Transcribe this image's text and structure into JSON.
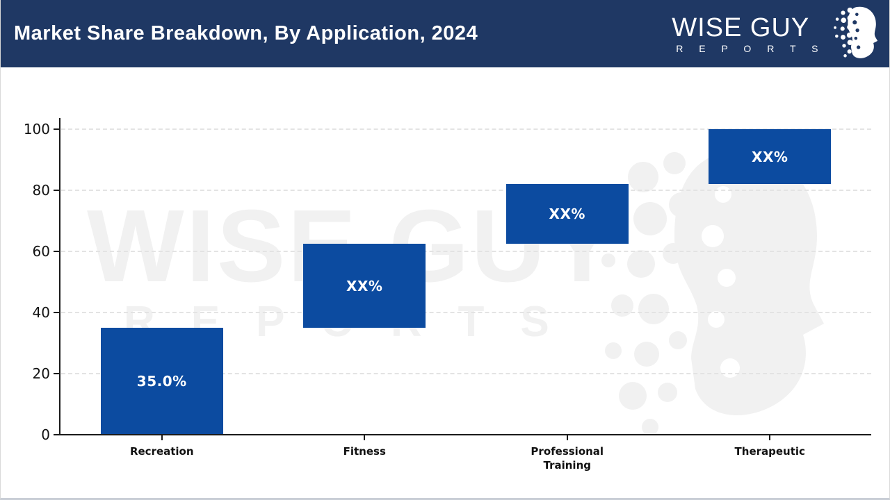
{
  "header": {
    "title": "Market Share Breakdown, By Application, 2024",
    "bg_color": "#1f3864",
    "logo": {
      "line1": "WISE GUY",
      "line2": "R E P O R T S"
    }
  },
  "watermark": {
    "line1": "WISE GUY",
    "line2": "REPORTS"
  },
  "chart_data": {
    "type": "bar",
    "variant": "waterfall",
    "title": "Market Share Breakdown, By Application, 2024",
    "categories": [
      "Recreation",
      "Fitness",
      "Professional Training",
      "Therapeutic"
    ],
    "segments": [
      {
        "category": "Recreation",
        "start": 0,
        "end": 35,
        "label": "35.0%"
      },
      {
        "category": "Fitness",
        "start": 35,
        "end": 62.5,
        "label": "XX%"
      },
      {
        "category": "Professional Training",
        "start": 62.5,
        "end": 82,
        "label": "XX%"
      },
      {
        "category": "Therapeutic",
        "start": 82,
        "end": 100,
        "label": "XX%"
      }
    ],
    "xlabel": "",
    "ylabel": "",
    "ylim": [
      0,
      100
    ],
    "yticks": [
      0,
      20,
      40,
      60,
      80,
      100
    ],
    "grid": {
      "horizontal": true,
      "style": "dashed",
      "color": "#e3e3e3"
    },
    "legend": "none",
    "bar_color": "#0c4ba0",
    "bar_label_color": "#ffffff",
    "axis_color": "#1a1a1a"
  }
}
